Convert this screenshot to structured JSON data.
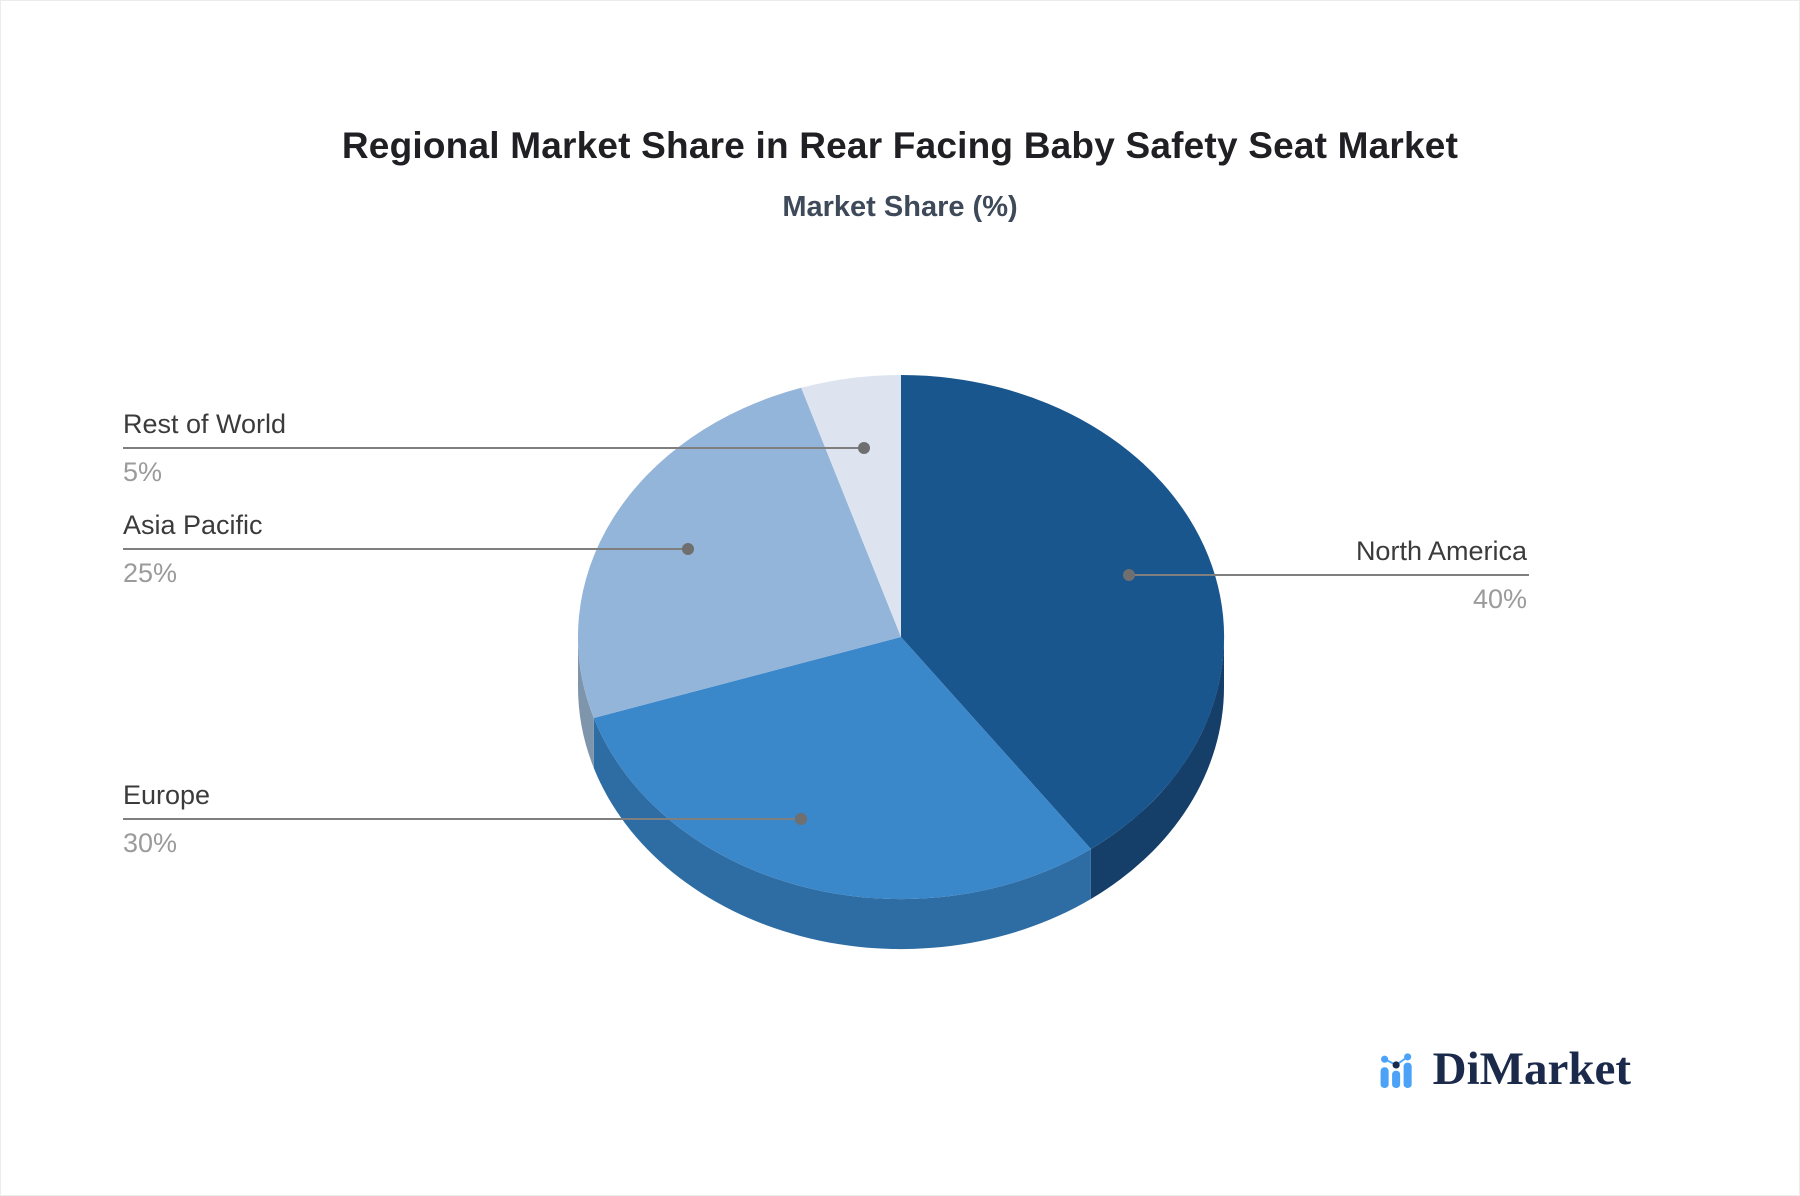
{
  "header": {
    "title": "Regional Market Share in Rear Facing Baby Safety Seat Market",
    "subtitle": "Market Share (%)"
  },
  "chart_data": {
    "type": "pie",
    "style": "3d",
    "title": "Regional Market Share in Rear Facing Baby Safety Seat Market",
    "subtitle": "Market Share (%)",
    "unit": "%",
    "start_angle_deg": 0,
    "direction": "clockwise",
    "slices": [
      {
        "label": "North America",
        "value": 40,
        "color": "#1A568E",
        "side_color": "#153F69"
      },
      {
        "label": "Europe",
        "value": 30,
        "color": "#3A87CA",
        "side_color": "#2E6DA4"
      },
      {
        "label": "Asia Pacific",
        "value": 25,
        "color": "#93B5D9",
        "side_color": "#7E95AC"
      },
      {
        "label": "Rest of World",
        "value": 5,
        "color": "#DDE4F0",
        "side_color": "#C2CBDA"
      }
    ]
  },
  "callouts": {
    "north_america": {
      "label": "North America",
      "pct": "40%"
    },
    "europe": {
      "label": "Europe",
      "pct": "30%"
    },
    "asia_pacific": {
      "label": "Asia Pacific",
      "pct": "25%"
    },
    "rest_of_world": {
      "label": "Rest of World",
      "pct": "5%"
    }
  },
  "logo": {
    "text": "DiMarket",
    "brand_navy": "#1B2A4A",
    "brand_blue": "#4BA2F7"
  },
  "style_colors": {
    "leader_line": "#7F7F7F",
    "leader_dot": "#6F6F6F",
    "label_text": "#3B3B3B",
    "pct_text": "#9B9B9B",
    "title_text": "#202024",
    "subtitle_text": "#3E4A5A"
  }
}
